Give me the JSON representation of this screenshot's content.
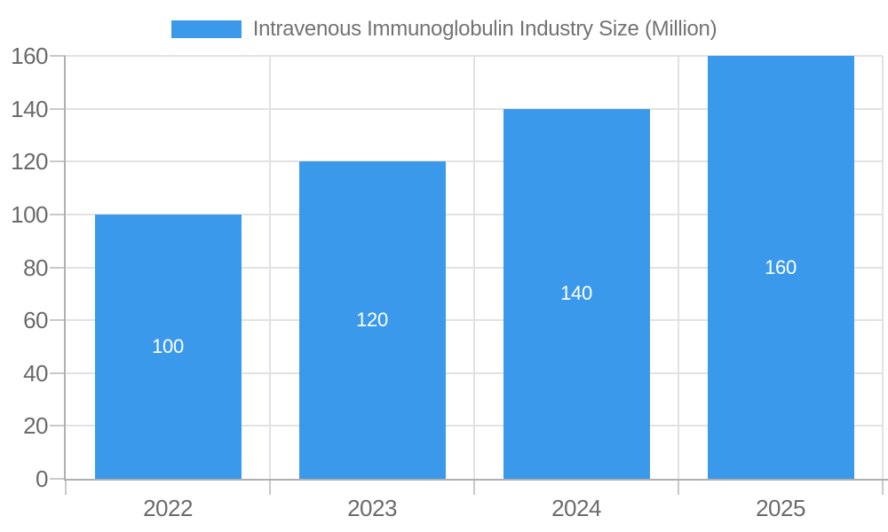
{
  "legend": {
    "label": "Intravenous Immunoglobulin Industry Size (Million)"
  },
  "chart_data": {
    "type": "bar",
    "title": "Intravenous Immunoglobulin Industry Size (Million)",
    "categories": [
      "2022",
      "2023",
      "2024",
      "2025"
    ],
    "values": [
      100,
      120,
      140,
      160
    ],
    "series": [
      {
        "name": "Intravenous Immunoglobulin Industry Size (Million)",
        "values": [
          100,
          120,
          140,
          160
        ]
      }
    ],
    "bar_labels": [
      "100",
      "120",
      "140",
      "160"
    ],
    "xlabel": "",
    "ylabel": "",
    "ylim": [
      0,
      160
    ],
    "ytick_step": 20,
    "yticks": [
      0,
      20,
      40,
      60,
      80,
      100,
      120,
      140,
      160
    ],
    "grid": true,
    "legend_position": "top",
    "colors": {
      "bar": "#3b99ec",
      "bar_label": "#ffffff",
      "axis_text": "#6b6b6b",
      "legend_text": "#737373",
      "axis_line": "#b0b0b0",
      "tick_line": "#c9c9c9",
      "gridline": "#e2e2e2",
      "background": "#ffffff"
    }
  }
}
